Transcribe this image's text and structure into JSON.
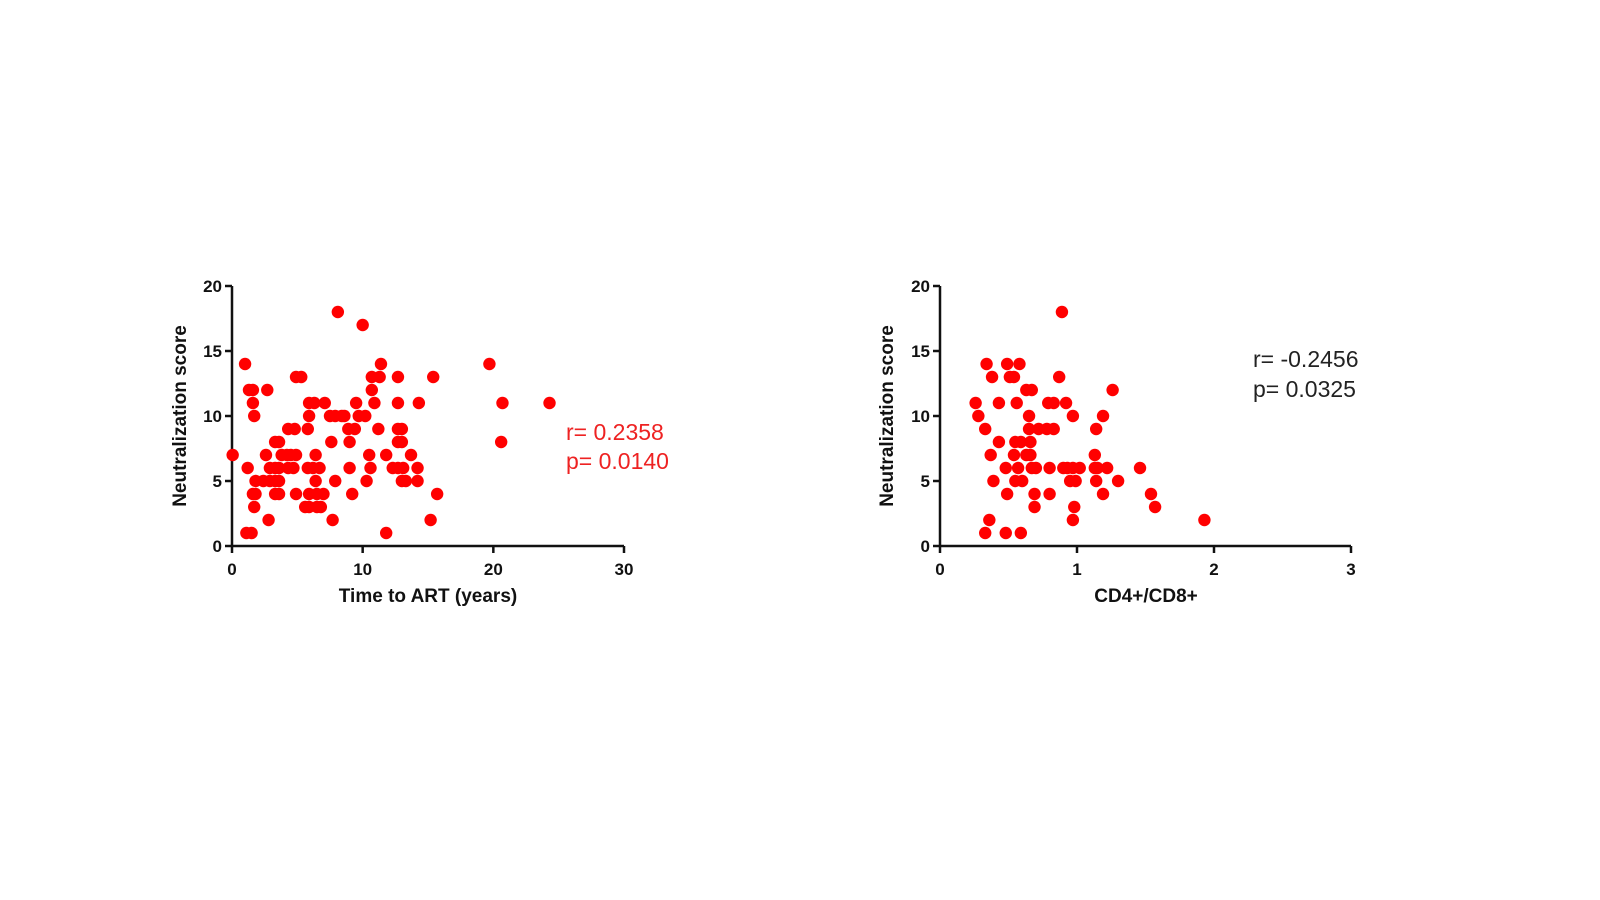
{
  "chart_data": [
    {
      "type": "scatter",
      "xlabel": "Time to ART (years)",
      "ylabel": "Neutralization score",
      "xlim": [
        0,
        30
      ],
      "ylim": [
        0,
        20
      ],
      "xticks": [
        "0",
        "10",
        "20",
        "30"
      ],
      "yticks": [
        "0",
        "5",
        "10",
        "15",
        "20"
      ],
      "color": "#ff0000",
      "annotation": {
        "r": "r= 0.2358",
        "p": "p= 0.0140",
        "color": "#ee2222"
      },
      "points": [
        [
          8.1,
          18
        ],
        [
          10.0,
          17
        ],
        [
          1.0,
          14
        ],
        [
          11.4,
          14
        ],
        [
          19.7,
          14
        ],
        [
          4.9,
          13
        ],
        [
          5.3,
          13
        ],
        [
          10.7,
          13
        ],
        [
          11.3,
          13
        ],
        [
          12.7,
          13
        ],
        [
          15.4,
          13
        ],
        [
          1.3,
          12
        ],
        [
          1.6,
          12
        ],
        [
          2.7,
          12
        ],
        [
          10.7,
          12
        ],
        [
          1.6,
          11
        ],
        [
          5.9,
          11
        ],
        [
          6.3,
          11
        ],
        [
          7.1,
          11
        ],
        [
          9.5,
          11
        ],
        [
          10.9,
          11
        ],
        [
          12.7,
          11
        ],
        [
          14.3,
          11
        ],
        [
          20.7,
          11
        ],
        [
          24.3,
          11
        ],
        [
          1.7,
          10
        ],
        [
          5.9,
          10
        ],
        [
          7.5,
          10
        ],
        [
          7.9,
          10
        ],
        [
          8.4,
          10
        ],
        [
          8.6,
          10
        ],
        [
          9.7,
          10
        ],
        [
          10.2,
          10
        ],
        [
          4.3,
          9
        ],
        [
          4.8,
          9
        ],
        [
          5.8,
          9
        ],
        [
          8.9,
          9
        ],
        [
          9.4,
          9
        ],
        [
          11.2,
          9
        ],
        [
          12.7,
          9
        ],
        [
          13.0,
          9
        ],
        [
          3.3,
          8
        ],
        [
          3.6,
          8
        ],
        [
          7.6,
          8
        ],
        [
          9.0,
          8
        ],
        [
          12.7,
          8
        ],
        [
          13.0,
          8
        ],
        [
          20.6,
          8
        ],
        [
          0.05,
          7
        ],
        [
          2.6,
          7
        ],
        [
          3.8,
          7
        ],
        [
          4.2,
          7
        ],
        [
          4.5,
          7
        ],
        [
          4.9,
          7
        ],
        [
          6.4,
          7
        ],
        [
          10.5,
          7
        ],
        [
          11.8,
          7
        ],
        [
          13.7,
          7
        ],
        [
          1.2,
          6
        ],
        [
          2.9,
          6
        ],
        [
          3.3,
          6
        ],
        [
          3.6,
          6
        ],
        [
          4.3,
          6
        ],
        [
          4.7,
          6
        ],
        [
          5.8,
          6
        ],
        [
          6.2,
          6
        ],
        [
          6.7,
          6
        ],
        [
          9.0,
          6
        ],
        [
          10.6,
          6
        ],
        [
          12.3,
          6
        ],
        [
          12.7,
          6
        ],
        [
          13.1,
          6
        ],
        [
          14.2,
          6
        ],
        [
          1.8,
          5
        ],
        [
          2.4,
          5
        ],
        [
          2.9,
          5
        ],
        [
          3.3,
          5
        ],
        [
          3.6,
          5
        ],
        [
          6.4,
          5
        ],
        [
          7.9,
          5
        ],
        [
          10.3,
          5
        ],
        [
          13.0,
          5
        ],
        [
          13.3,
          5
        ],
        [
          14.2,
          5
        ],
        [
          1.6,
          4
        ],
        [
          1.8,
          4
        ],
        [
          3.3,
          4
        ],
        [
          3.6,
          4
        ],
        [
          4.9,
          4
        ],
        [
          5.9,
          4
        ],
        [
          6.5,
          4
        ],
        [
          7.0,
          4
        ],
        [
          9.2,
          4
        ],
        [
          15.7,
          4
        ],
        [
          1.7,
          3
        ],
        [
          5.6,
          3
        ],
        [
          5.9,
          3
        ],
        [
          6.5,
          3
        ],
        [
          6.8,
          3
        ],
        [
          2.8,
          2
        ],
        [
          7.7,
          2
        ],
        [
          15.2,
          2
        ],
        [
          1.1,
          1
        ],
        [
          1.5,
          1
        ],
        [
          11.8,
          1
        ]
      ]
    },
    {
      "type": "scatter",
      "xlabel": "CD4+/CD8+",
      "ylabel": "Neutralization score",
      "xlim": [
        0,
        3
      ],
      "ylim": [
        0,
        20
      ],
      "xticks": [
        "0",
        "1",
        "2",
        "3"
      ],
      "yticks": [
        "0",
        "5",
        "10",
        "15",
        "20"
      ],
      "color": "#ff0000",
      "annotation": {
        "r": "r= -0.2456",
        "p": "p= 0.0325",
        "color": "#222222"
      },
      "points": [
        [
          0.89,
          18
        ],
        [
          0.34,
          14
        ],
        [
          0.49,
          14
        ],
        [
          0.58,
          14
        ],
        [
          0.38,
          13
        ],
        [
          0.51,
          13
        ],
        [
          0.54,
          13
        ],
        [
          0.87,
          13
        ],
        [
          0.63,
          12
        ],
        [
          0.67,
          12
        ],
        [
          1.26,
          12
        ],
        [
          0.26,
          11
        ],
        [
          0.43,
          11
        ],
        [
          0.56,
          11
        ],
        [
          0.79,
          11
        ],
        [
          0.83,
          11
        ],
        [
          0.92,
          11
        ],
        [
          0.28,
          10
        ],
        [
          0.65,
          10
        ],
        [
          0.97,
          10
        ],
        [
          1.19,
          10
        ],
        [
          0.33,
          9
        ],
        [
          0.65,
          9
        ],
        [
          0.72,
          9
        ],
        [
          0.78,
          9
        ],
        [
          0.83,
          9
        ],
        [
          1.14,
          9
        ],
        [
          0.43,
          8
        ],
        [
          0.55,
          8
        ],
        [
          0.59,
          8
        ],
        [
          0.66,
          8
        ],
        [
          0.37,
          7
        ],
        [
          0.54,
          7
        ],
        [
          0.63,
          7
        ],
        [
          0.66,
          7
        ],
        [
          1.13,
          7
        ],
        [
          0.48,
          6
        ],
        [
          0.57,
          6
        ],
        [
          0.67,
          6
        ],
        [
          0.7,
          6
        ],
        [
          0.8,
          6
        ],
        [
          0.9,
          6
        ],
        [
          0.93,
          6
        ],
        [
          0.97,
          6
        ],
        [
          1.02,
          6
        ],
        [
          1.13,
          6
        ],
        [
          1.15,
          6
        ],
        [
          1.22,
          6
        ],
        [
          1.46,
          6
        ],
        [
          0.39,
          5
        ],
        [
          0.55,
          5
        ],
        [
          0.6,
          5
        ],
        [
          0.95,
          5
        ],
        [
          0.99,
          5
        ],
        [
          1.14,
          5
        ],
        [
          1.3,
          5
        ],
        [
          0.49,
          4
        ],
        [
          0.69,
          4
        ],
        [
          0.8,
          4
        ],
        [
          1.19,
          4
        ],
        [
          1.54,
          4
        ],
        [
          0.69,
          3
        ],
        [
          0.98,
          3
        ],
        [
          1.57,
          3
        ],
        [
          0.36,
          2
        ],
        [
          0.97,
          2
        ],
        [
          1.93,
          2
        ],
        [
          0.33,
          1
        ],
        [
          0.48,
          1
        ],
        [
          0.59,
          1
        ]
      ]
    }
  ]
}
